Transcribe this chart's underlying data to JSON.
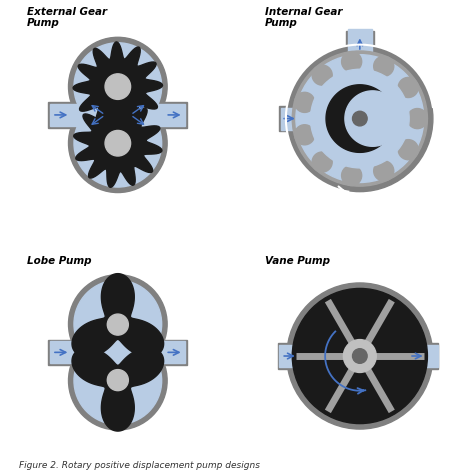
{
  "title": "Figure 2. Rotary positive displacement pump designs",
  "labels": [
    "External Gear\nPump",
    "Internal Gear\nPump",
    "Lobe Pump",
    "Vane Pump"
  ],
  "colors": {
    "background": "#ffffff",
    "gray_housing": "#808080",
    "gray_light": "#a0a0a0",
    "light_blue": "#b8cce4",
    "dark_gear": "#1a1a1a",
    "mid_gray": "#666666",
    "arrow_blue": "#4472c4",
    "white": "#ffffff",
    "silver": "#c0c0c0"
  }
}
